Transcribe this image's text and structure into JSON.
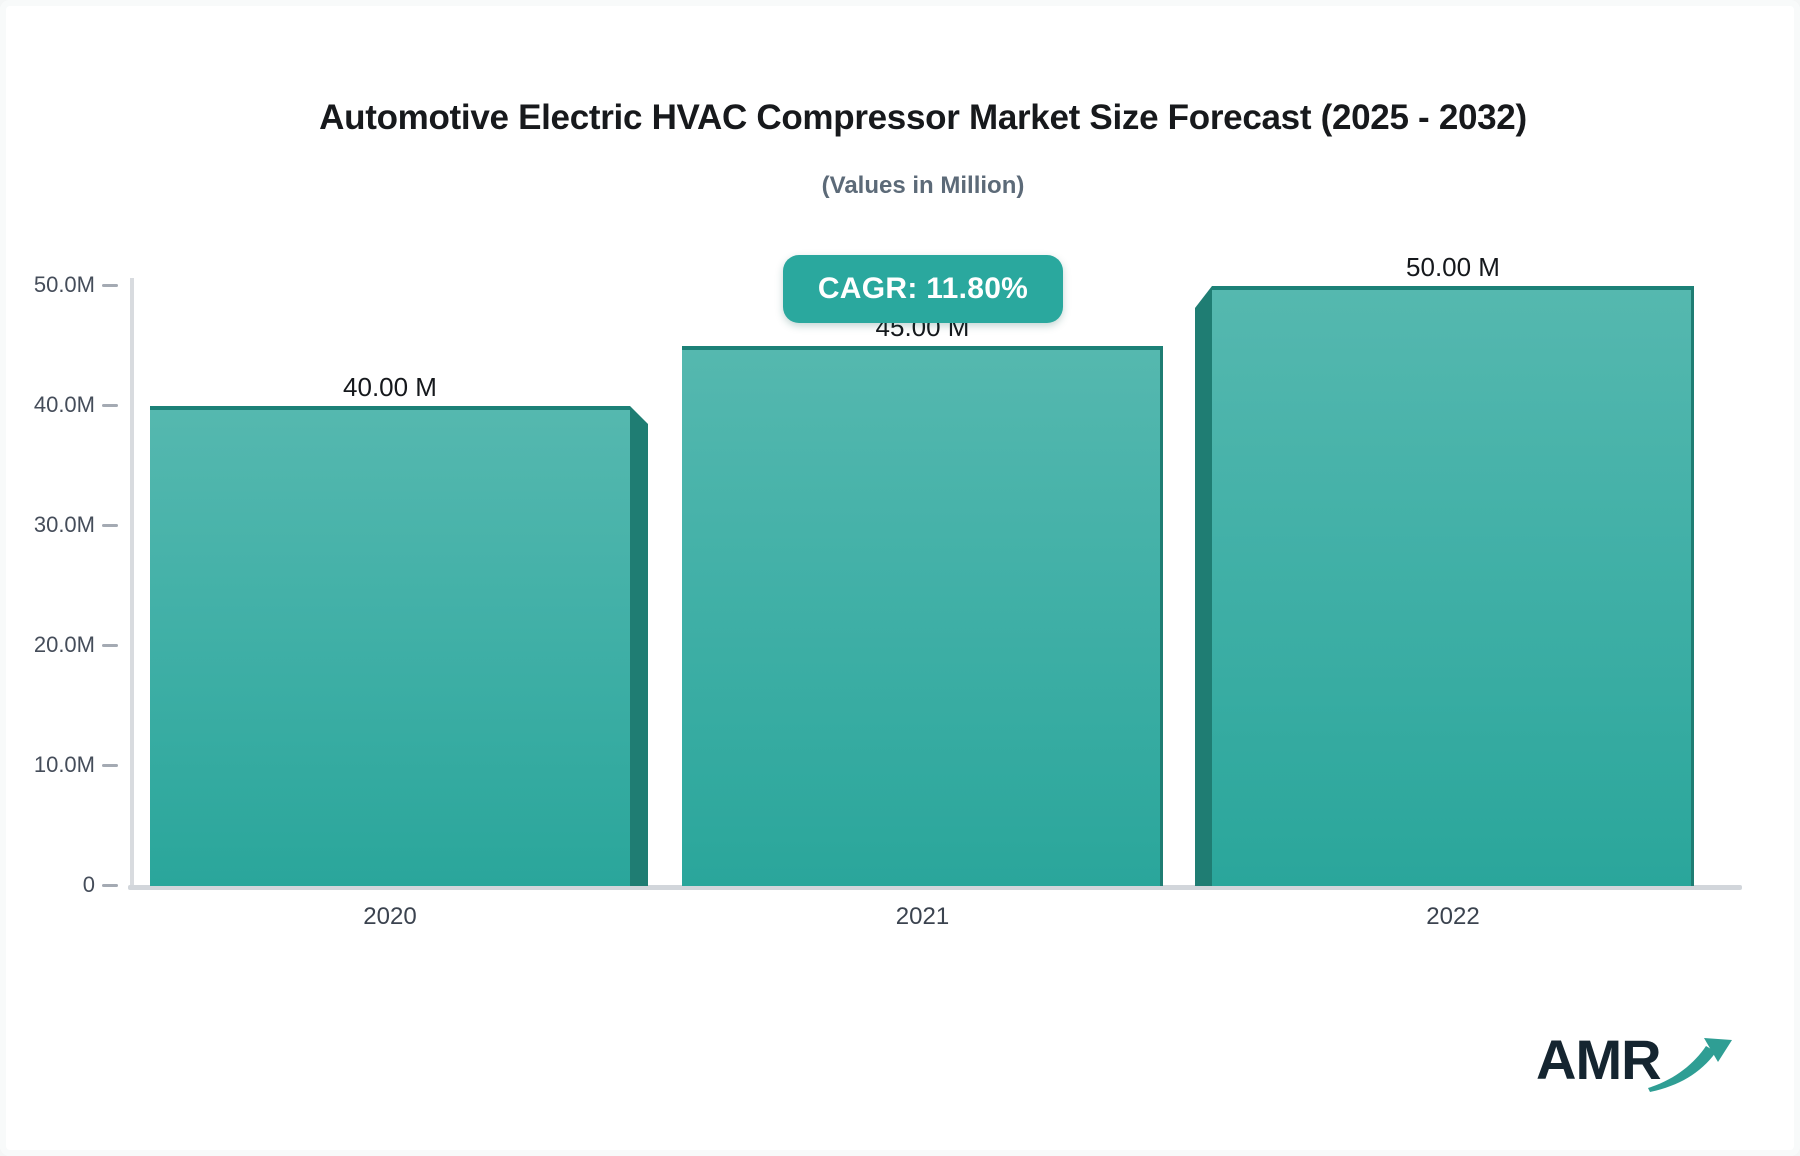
{
  "header": {
    "title": "Automotive Electric HVAC Compressor Market Size Forecast (2025 - 2032)",
    "subtitle": "(Values in Million)"
  },
  "cagr_badge": {
    "label": "CAGR: 11.80%",
    "value_percent": 11.8,
    "color": "#2aa89e"
  },
  "chart_data": {
    "type": "bar",
    "title": "Automotive Electric HVAC Compressor Market Size Forecast (2025 - 2032)",
    "subtitle": "(Values in Million)",
    "unit": "Million",
    "categories": [
      "2020",
      "2021",
      "2022"
    ],
    "values": [
      40,
      45,
      50
    ],
    "value_labels": [
      "40.00 M",
      "45.00 M",
      "50.00 M"
    ],
    "xlabel": "",
    "ylabel": "",
    "ylim": [
      0,
      50
    ],
    "grid": false,
    "legend": false,
    "y_ticks": [
      {
        "value": 50,
        "label": "50.0M"
      },
      {
        "value": 40,
        "label": "40.0M"
      },
      {
        "value": 30,
        "label": "30.0M"
      },
      {
        "value": 20,
        "label": "20.0M"
      },
      {
        "value": 10,
        "label": "10.0M"
      },
      {
        "value": 0,
        "label": "0"
      }
    ],
    "colors": {
      "bar_gradient_top": "#55b8af",
      "bar_gradient_bottom": "#2aa69b",
      "bar_side_3d": "#1f7d73",
      "bar_top_edge": "#1c8177",
      "axis_line": "#d2d6db",
      "accent": "#2aa89e"
    }
  },
  "logo": {
    "text": "AMR",
    "icon": "growth-arrow-icon",
    "arrow_color": "#2f9e94"
  }
}
